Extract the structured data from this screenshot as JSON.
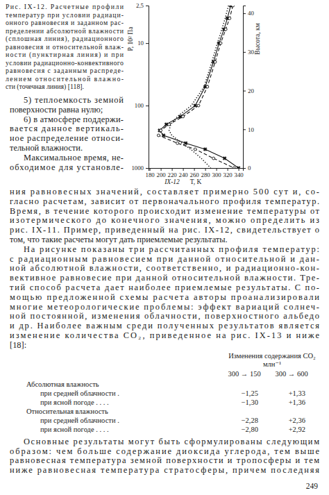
{
  "caption": [
    "Рис. IX-12. Расчетные профили",
    "температур при условии радиаци-",
    "онного равновесия и заданном рас-",
    "пределении абсолютной влажности",
    "(сплошная линия), радиационного",
    "равновесия и относительной влаж-",
    "ности (пунктирная линия) и при",
    "условии радиационно-конвективного",
    "равновесия с заданным распреде-",
    "лением относительной влажно-",
    "сти (точечная линия) [118]."
  ],
  "list_items": [
    [
      "5) теплоемкость земной",
      "поверхности равна нулю;"
    ],
    [
      "6) в атмосфере поддержи-",
      "вается данное вертикаль-",
      "ное распределение относи-",
      "тельной влажности."
    ]
  ],
  "paragraphs": [
    [
      "Максимальное время, не-",
      "обходимое для установле-",
      "ния равновесных значений, составляет примерно 500 сут и, со-",
      "гласно расчетам, зависит от первоначального профиля температур.",
      "Время, в течение которого происходит изменение температуры от",
      "изотермического до конечного значения, можно определить из",
      "рис. IX-11. Пример, приведенный на рис. IX-12, свидетельствует о",
      "том, что такие расчеты могут дать приемлемые результаты."
    ],
    [
      "На рисунке показаны три рассчитанных профиля температур:",
      "с радиационным равновесием при данной относительной и дан-",
      "ной абсолютной влажности, соответственно, и радиационно-кон-",
      "вективное равновесие при данной относительной влажности. Тре-",
      "тий способ расчета дает наиболее приемлемые результаты. С по-",
      "мощью предложенной схемы расчета авторы проанализировали",
      "многие метеорологические проблемы: эффект вариаций солнеч-",
      "ной постоянной, изменения облачности, поверхностного альбедо",
      "и др. Наиболее важным среди полученных результатов является",
      "изменение количества CO₂, приведенное на рис. IX-13 и ниже",
      "[18]:"
    ]
  ],
  "table": {
    "title": "Изменения содержания CO₂",
    "unit": "млн⁻¹",
    "columns": [
      "300 → 150",
      "300 → 600"
    ],
    "groups": [
      {
        "label": "Абсолютная влажность",
        "rows": [
          {
            "label": "при средней облачности .",
            "values": [
              "−1,25",
              "+1,33"
            ]
          },
          {
            "label": "при ясной погоде . . . .",
            "values": [
              "−1,30",
              "+1,36"
            ]
          }
        ]
      },
      {
        "label": "Относительная влажность",
        "rows": [
          {
            "label": "при средней облачности .",
            "values": [
              "−2,28",
              "+2,36"
            ]
          },
          {
            "label": "при ясной погоде . . . .",
            "values": [
              "−2,80",
              "+2,92"
            ]
          }
        ]
      }
    ]
  },
  "closing_paragraph": [
    "Основные результаты могут быть сформулированы следующим",
    "образом: чем больше содержание диоксида углерода, тем выше",
    "равновесная температура земной поверхности и тропосферы и тем",
    "ниже равновесная температура стратосферы, причем последняя"
  ],
  "page_number": "249",
  "chart_data": {
    "type": "line",
    "xlabel": "T, K",
    "ylabel": "P, 10² Па",
    "y2label": "Высота, км",
    "annotation": "IX-12",
    "log": "y",
    "y": [
      2.5,
      4,
      6,
      10,
      20,
      50,
      100,
      150,
      200,
      250,
      300,
      400,
      500,
      700,
      1000
    ],
    "xlim": [
      178,
      348
    ],
    "xticks": [
      180,
      200,
      220,
      240,
      260,
      280,
      300,
      320,
      340
    ],
    "ylim": [
      1000,
      2.5
    ],
    "yticks": [
      {
        "value": 2.5,
        "label": "2,5"
      },
      10,
      100,
      1000
    ],
    "y2lim": [
      0,
      42
    ],
    "y2ticks": [
      0,
      10,
      20,
      30,
      40
    ],
    "series": [
      {
        "color": "#111111",
        "line_style": "solid",
        "marker": "cross",
        "values": [
          326,
          320,
          314,
          305,
          295,
          280,
          262,
          235,
          210,
          198,
          205,
          245,
          280,
          315,
          340
        ]
      },
      {
        "color": "#111111",
        "line_style": "dashed",
        "marker": "circle",
        "values": [
          330,
          324,
          317,
          308,
          298,
          284,
          268,
          240,
          215,
          200,
          196,
          230,
          262,
          295,
          332
        ]
      },
      {
        "color": "#111111",
        "line_style": "dotted",
        "marker": "none",
        "values": [
          322,
          316,
          310,
          302,
          292,
          278,
          255,
          230,
          218,
          215,
          220,
          238,
          254,
          273,
          290
        ]
      }
    ]
  }
}
